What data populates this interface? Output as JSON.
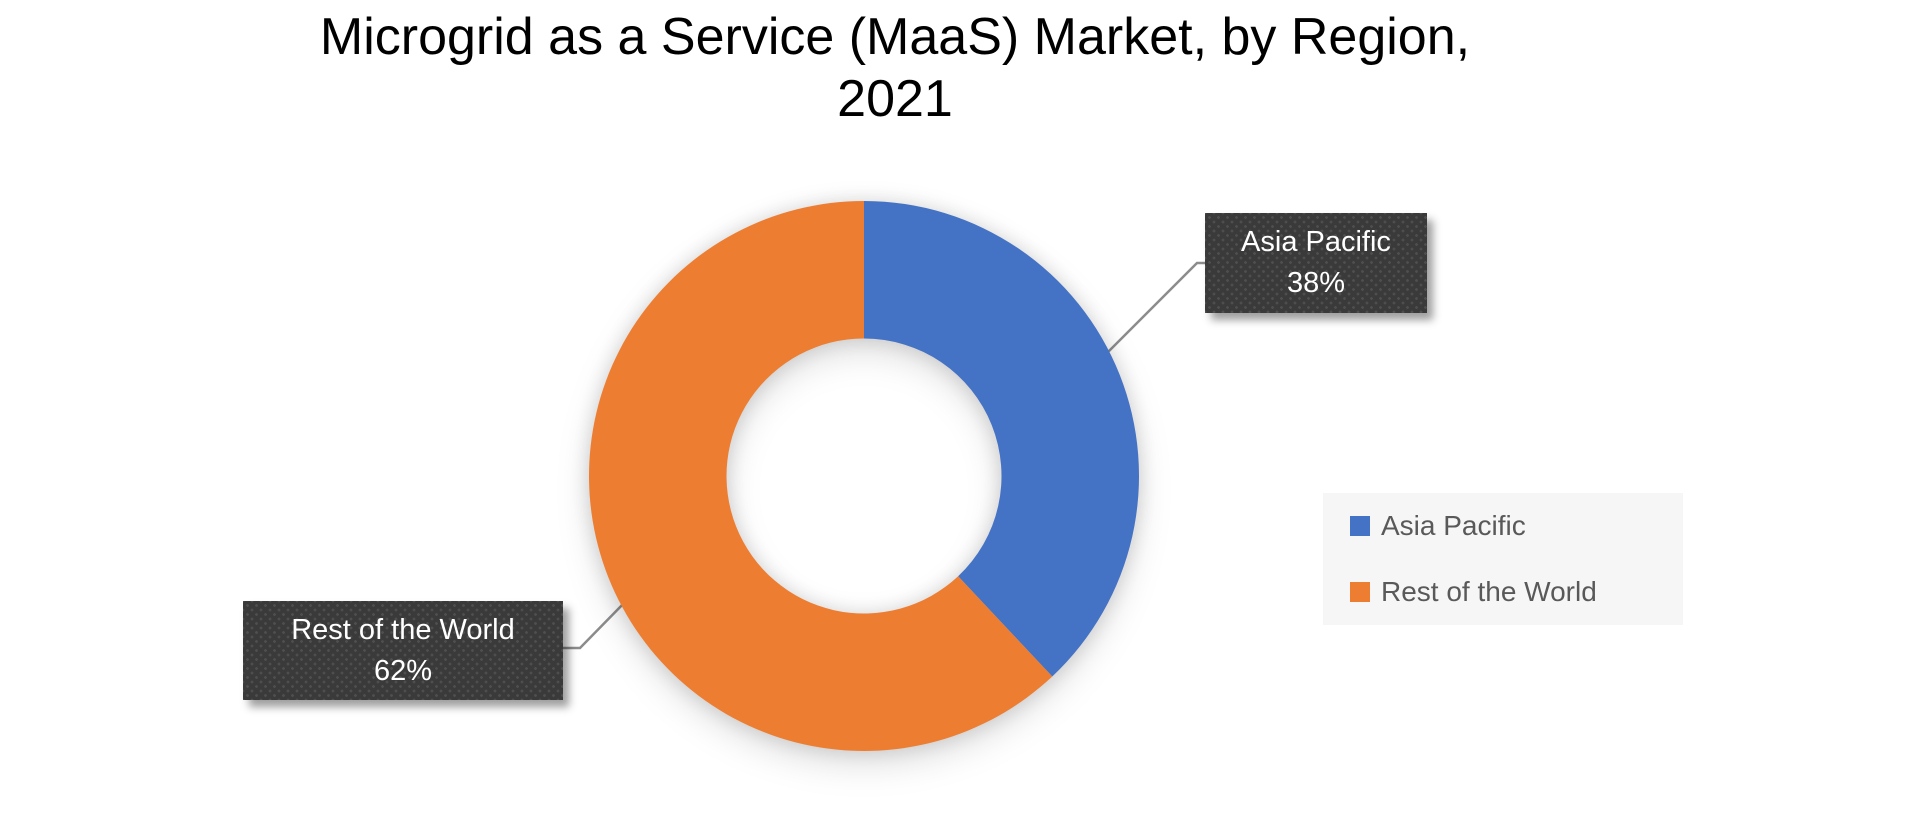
{
  "header": {
    "title_line1": "Microgrid as a Service (MaaS) Market, by Region,",
    "title_line2": "2021"
  },
  "chart_data": {
    "type": "pie",
    "subtype": "donut",
    "title": "Microgrid as a Service (MaaS) Market, by Region, 2021",
    "categories": [
      "Asia Pacific",
      "Rest of the World"
    ],
    "values": [
      38,
      62
    ],
    "unit": "%",
    "colors": [
      "#4472C4",
      "#ED7D31"
    ],
    "start_angle_deg": 0,
    "direction": "clockwise",
    "hole_ratio": 0.5,
    "legend_position": "right",
    "data_labels": [
      "Asia Pacific 38%",
      "Rest of the World 62%"
    ]
  },
  "callouts": [
    {
      "label": "Asia Pacific",
      "value_label": "38%"
    },
    {
      "label": "Rest of the World",
      "value_label": "62%"
    }
  ],
  "legend": {
    "items": [
      {
        "label": "Asia Pacific",
        "color": "#4472C4"
      },
      {
        "label": "Rest of the World",
        "color": "#ED7D31"
      }
    ]
  },
  "styles": {
    "accent_blue": "#4472C4",
    "accent_orange": "#ED7D31",
    "callout_bg": "#3A3A3A",
    "callout_text": "#FFFFFF",
    "leader_line": "#8C8C8C",
    "legend_bg": "#F6F6F6",
    "legend_text": "#595959",
    "title_color": "#000000"
  }
}
